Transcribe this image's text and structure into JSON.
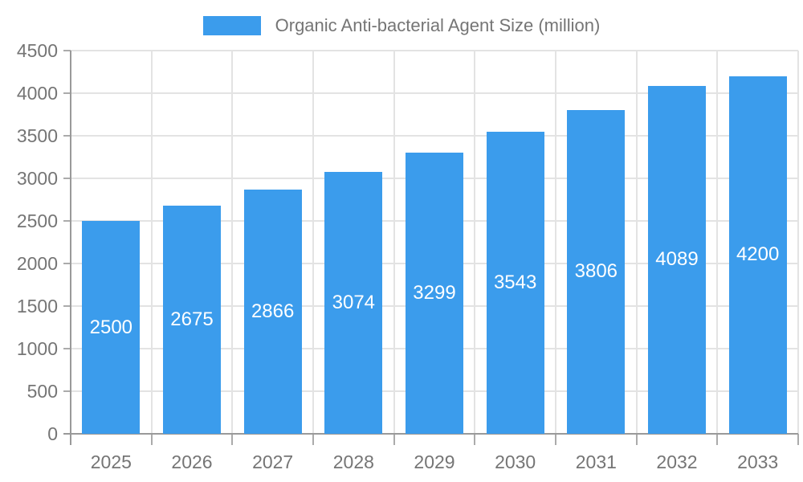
{
  "legend": {
    "label": "Organic Anti-bacterial Agent Size (million)"
  },
  "chart_data": {
    "type": "bar",
    "title": "Organic Anti-bacterial Agent Size (million)",
    "categories": [
      "2025",
      "2026",
      "2027",
      "2028",
      "2029",
      "2030",
      "2031",
      "2032",
      "2033"
    ],
    "values": [
      2500,
      2675,
      2866,
      3074,
      3299,
      3543,
      3806,
      4089,
      4200
    ],
    "series": [
      {
        "name": "Organic Anti-bacterial Agent Size (million)",
        "values": [
          2500,
          2675,
          2866,
          3074,
          3299,
          3543,
          3806,
          4089,
          4200
        ]
      }
    ],
    "xlabel": "",
    "ylabel": "",
    "ylim": [
      0,
      4500
    ],
    "ytick_step": 500,
    "ytick_labels": [
      "0",
      "500",
      "1000",
      "1500",
      "2000",
      "2500",
      "3000",
      "3500",
      "4000",
      "4500"
    ],
    "grid": true,
    "legend_position": "top-center",
    "value_label_position": "inside-middle"
  },
  "colors": {
    "bar": "#3B9CEC",
    "bar_label": "#FFFFFF",
    "axis": "#999999",
    "tick": "#ABABAB",
    "grid": "#E3E3E3",
    "text": "#757575",
    "background": "#FFFFFF"
  }
}
